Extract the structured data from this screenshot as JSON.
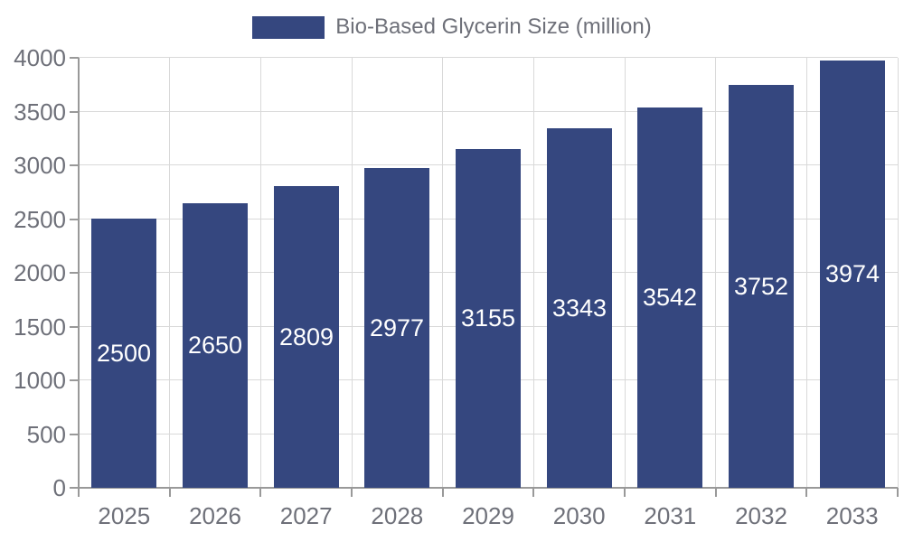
{
  "chart_data": {
    "type": "bar",
    "title": "Bio-Based Glycerin Size (million)",
    "legend": {
      "label": "Bio-Based Glycerin Size (million)",
      "position": "top-center"
    },
    "categories": [
      "2025",
      "2026",
      "2027",
      "2028",
      "2029",
      "2030",
      "2031",
      "2032",
      "2033"
    ],
    "values": [
      2500,
      2650,
      2809,
      2977,
      3155,
      3343,
      3542,
      3752,
      3974
    ],
    "xlabel": "",
    "ylabel": "",
    "ylim": [
      0,
      4000
    ],
    "yticks": [
      0,
      500,
      1000,
      1500,
      2000,
      2500,
      3000,
      3500,
      4000
    ],
    "grid": {
      "horizontal": true,
      "vertical": true
    },
    "bar_labels_visible": true,
    "bar_label_position": "inside-center",
    "colors": {
      "bar": "#35477f",
      "bar_label": "#ffffff",
      "axis_text": "#6e7079",
      "grid_line": "#d9d9d9",
      "axis_line": "#999999",
      "background": "#ffffff"
    }
  }
}
